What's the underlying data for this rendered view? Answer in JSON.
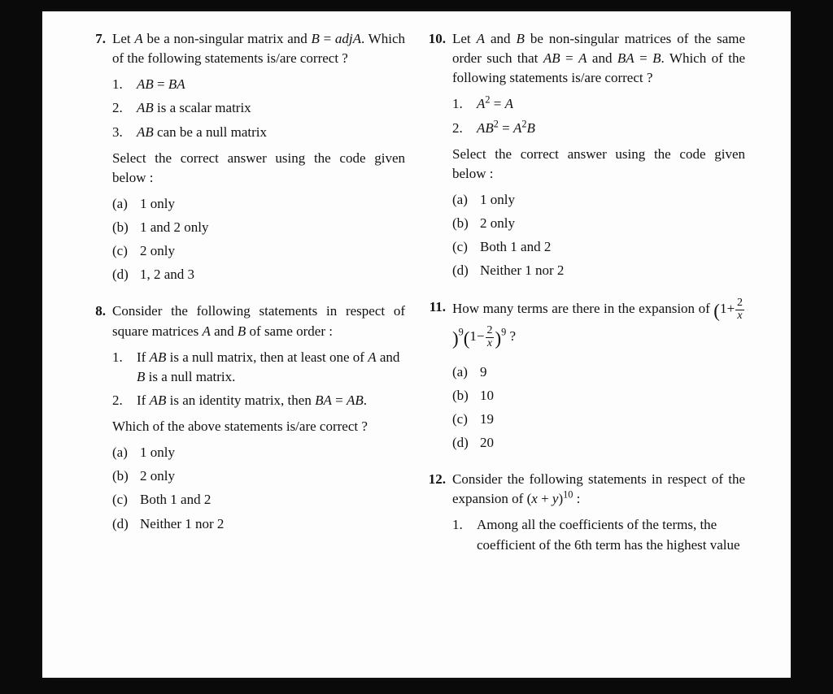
{
  "left": {
    "q7": {
      "num": "7.",
      "text": "Let <span class=\"ital\">A</span> be a non-singular matrix and <span class=\"ital\">B</span> = <span class=\"ital\">adjA</span>. Which of the following statements is/are correct ?",
      "stmts": [
        {
          "label": "1.",
          "text": "<span class=\"ital\">AB</span> = <span class=\"ital\">BA</span>"
        },
        {
          "label": "2.",
          "text": "<span class=\"ital\">AB</span> is a scalar matrix"
        },
        {
          "label": "3.",
          "text": "<span class=\"ital\">AB</span> can be a null matrix"
        }
      ],
      "code": "Select the correct answer using the code given below :",
      "opts": [
        {
          "label": "(a)",
          "text": "1 only"
        },
        {
          "label": "(b)",
          "text": "1 and 2 only"
        },
        {
          "label": "(c)",
          "text": "2 only"
        },
        {
          "label": "(d)",
          "text": "1, 2 and 3"
        }
      ]
    },
    "q8": {
      "num": "8.",
      "text": "Consider the following statements in respect of square matrices <span class=\"ital\">A</span> and <span class=\"ital\">B</span> of same order :",
      "stmts": [
        {
          "label": "1.",
          "text": "If <span class=\"ital\">AB</span> is a null matrix, then at least one of <span class=\"ital\">A</span> and <span class=\"ital\">B</span> is a null matrix."
        },
        {
          "label": "2.",
          "text": "If <span class=\"ital\">AB</span> is an identity matrix, then <span class=\"ital\">BA</span> = <span class=\"ital\">AB</span>."
        }
      ],
      "code": "Which of the above statements is/are correct ?",
      "opts": [
        {
          "label": "(a)",
          "text": "1 only"
        },
        {
          "label": "(b)",
          "text": "2 only"
        },
        {
          "label": "(c)",
          "text": "Both 1 and 2"
        },
        {
          "label": "(d)",
          "text": "Neither 1 nor 2"
        }
      ]
    }
  },
  "right": {
    "q10": {
      "num": "10.",
      "text": "Let <span class=\"ital\">A</span> and <span class=\"ital\">B</span> be non-singular matrices of the same order such that <span class=\"ital\">AB</span> = <span class=\"ital\">A</span> and <span class=\"ital\">BA</span> = <span class=\"ital\">B</span>. Which of the following statements is/are correct ?",
      "stmts": [
        {
          "label": "1.",
          "text": "<span class=\"ital\">A</span><sup>2</sup> = <span class=\"ital\">A</span>"
        },
        {
          "label": "2.",
          "text": "<span class=\"ital\">AB</span><sup>2</sup> = <span class=\"ital\">A</span><sup>2</sup><span class=\"ital\">B</span>"
        }
      ],
      "code": "Select the correct answer using the code given below :",
      "opts": [
        {
          "label": "(a)",
          "text": "1 only"
        },
        {
          "label": "(b)",
          "text": "2 only"
        },
        {
          "label": "(c)",
          "text": "Both 1 and 2"
        },
        {
          "label": "(d)",
          "text": "Neither 1 nor 2"
        }
      ]
    },
    "q11": {
      "num": "11.",
      "text": "How many terms are there in the expansion of <span class=\"big\">(</span>1+<span class=\"frac\"><span class=\"num\">2</span><span class=\"den\"><span class=\"ital\">x</span></span></span><span class=\"big\">)</span><sup>9</sup><span class=\"big\">(</span>1&minus;<span class=\"frac\"><span class=\"num\">2</span><span class=\"den\"><span class=\"ital\">x</span></span></span><span class=\"big\">)</span><sup>9</sup> ?",
      "opts": [
        {
          "label": "(a)",
          "text": "9"
        },
        {
          "label": "(b)",
          "text": "10"
        },
        {
          "label": "(c)",
          "text": "19"
        },
        {
          "label": "(d)",
          "text": "20"
        }
      ]
    },
    "q12": {
      "num": "12.",
      "text": "Consider the following statements in respect of the expansion of (<span class=\"ital\">x</span> + <span class=\"ital\">y</span>)<sup>10</sup> :",
      "stmts": [
        {
          "label": "1.",
          "text": "Among all the coefficients of the terms, the coefficient of the 6th term has the highest value"
        }
      ]
    }
  }
}
